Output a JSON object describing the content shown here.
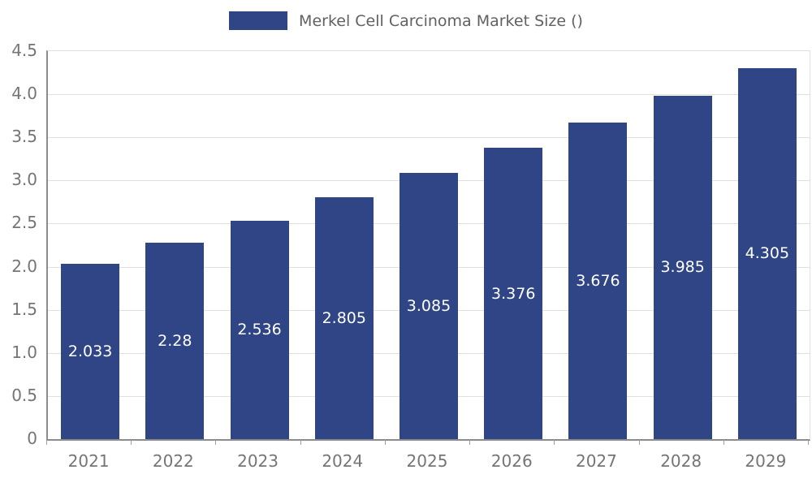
{
  "legend": {
    "label": "Merkel Cell Carcinoma Market Size ()"
  },
  "chart_data": {
    "type": "bar",
    "title": "Merkel Cell Carcinoma Market Size ()",
    "categories": [
      "2021",
      "2022",
      "2023",
      "2024",
      "2025",
      "2026",
      "2027",
      "2028",
      "2029"
    ],
    "values": [
      2.033,
      2.28,
      2.536,
      2.805,
      3.085,
      3.376,
      3.676,
      3.985,
      4.305
    ],
    "value_labels": [
      "2.033",
      "2.28",
      "2.536",
      "2.805",
      "3.085",
      "3.376",
      "3.676",
      "3.985",
      "4.305"
    ],
    "xlabel": "",
    "ylabel": "",
    "ylim": [
      0,
      4.5
    ],
    "ytick_step": 0.5,
    "ytick_labels": [
      "0",
      "0.5",
      "1.0",
      "1.5",
      "2.0",
      "2.5",
      "3.0",
      "3.5",
      "4.0",
      "4.5"
    ],
    "bar_color": "#2f4585",
    "bar_label_color": "#ffffff",
    "grid": true,
    "legend_position": "top"
  }
}
